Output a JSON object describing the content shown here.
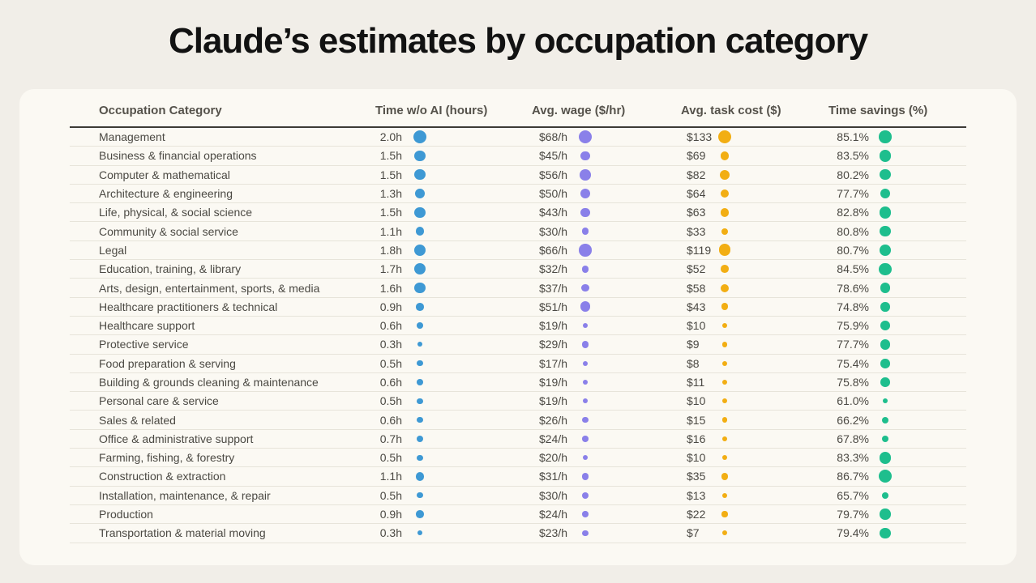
{
  "title": "Claude’s estimates by occupation category",
  "chart_data": {
    "type": "table",
    "title": "Claude’s estimates by occupation category",
    "columns": {
      "category": "Occupation Category",
      "time": "Time w/o AI (hours)",
      "wage": "Avg. wage ($/hr)",
      "cost": "Avg. task cost ($)",
      "savings": "Time savings (%)"
    },
    "dot_colors": {
      "time": "#3E99D4",
      "wage": "#8A80E9",
      "cost": "#F2AE13",
      "savings": "#1EBE8D"
    },
    "rows": [
      {
        "category": "Management",
        "time": "2.0h",
        "time_value": 2.0,
        "wage": "$68/h",
        "wage_value": 68,
        "cost": "$133",
        "cost_value": 133,
        "savings": "85.1%",
        "savings_value": 85.1
      },
      {
        "category": "Business & financial operations",
        "time": "1.5h",
        "time_value": 1.5,
        "wage": "$45/h",
        "wage_value": 45,
        "cost": "$69",
        "cost_value": 69,
        "savings": "83.5%",
        "savings_value": 83.5
      },
      {
        "category": "Computer & mathematical",
        "time": "1.5h",
        "time_value": 1.5,
        "wage": "$56/h",
        "wage_value": 56,
        "cost": "$82",
        "cost_value": 82,
        "savings": "80.2%",
        "savings_value": 80.2
      },
      {
        "category": "Architecture & engineering",
        "time": "1.3h",
        "time_value": 1.3,
        "wage": "$50/h",
        "wage_value": 50,
        "cost": "$64",
        "cost_value": 64,
        "savings": "77.7%",
        "savings_value": 77.7
      },
      {
        "category": "Life, physical, & social science",
        "time": "1.5h",
        "time_value": 1.5,
        "wage": "$43/h",
        "wage_value": 43,
        "cost": "$63",
        "cost_value": 63,
        "savings": "82.8%",
        "savings_value": 82.8
      },
      {
        "category": "Community & social service",
        "time": "1.1h",
        "time_value": 1.1,
        "wage": "$30/h",
        "wage_value": 30,
        "cost": "$33",
        "cost_value": 33,
        "savings": "80.8%",
        "savings_value": 80.8
      },
      {
        "category": "Legal",
        "time": "1.8h",
        "time_value": 1.8,
        "wage": "$66/h",
        "wage_value": 66,
        "cost": "$119",
        "cost_value": 119,
        "savings": "80.7%",
        "savings_value": 80.7
      },
      {
        "category": "Education, training, & library",
        "time": "1.7h",
        "time_value": 1.7,
        "wage": "$32/h",
        "wage_value": 32,
        "cost": "$52",
        "cost_value": 52,
        "savings": "84.5%",
        "savings_value": 84.5
      },
      {
        "category": "Arts, design, entertainment, sports, & media",
        "time": "1.6h",
        "time_value": 1.6,
        "wage": "$37/h",
        "wage_value": 37,
        "cost": "$58",
        "cost_value": 58,
        "savings": "78.6%",
        "savings_value": 78.6
      },
      {
        "category": "Healthcare practitioners & technical",
        "time": "0.9h",
        "time_value": 0.9,
        "wage": "$51/h",
        "wage_value": 51,
        "cost": "$43",
        "cost_value": 43,
        "savings": "74.8%",
        "savings_value": 74.8
      },
      {
        "category": "Healthcare support",
        "time": "0.6h",
        "time_value": 0.6,
        "wage": "$19/h",
        "wage_value": 19,
        "cost": "$10",
        "cost_value": 10,
        "savings": "75.9%",
        "savings_value": 75.9
      },
      {
        "category": "Protective service",
        "time": "0.3h",
        "time_value": 0.3,
        "wage": "$29/h",
        "wage_value": 29,
        "cost": "$9",
        "cost_value": 9,
        "savings": "77.7%",
        "savings_value": 77.7
      },
      {
        "category": "Food preparation & serving",
        "time": "0.5h",
        "time_value": 0.5,
        "wage": "$17/h",
        "wage_value": 17,
        "cost": "$8",
        "cost_value": 8,
        "savings": "75.4%",
        "savings_value": 75.4
      },
      {
        "category": "Building & grounds cleaning & maintenance",
        "time": "0.6h",
        "time_value": 0.6,
        "wage": "$19/h",
        "wage_value": 19,
        "cost": "$11",
        "cost_value": 11,
        "savings": "75.8%",
        "savings_value": 75.8
      },
      {
        "category": "Personal care & service",
        "time": "0.5h",
        "time_value": 0.5,
        "wage": "$19/h",
        "wage_value": 19,
        "cost": "$10",
        "cost_value": 10,
        "savings": "61.0%",
        "savings_value": 61.0
      },
      {
        "category": "Sales & related",
        "time": "0.6h",
        "time_value": 0.6,
        "wage": "$26/h",
        "wage_value": 26,
        "cost": "$15",
        "cost_value": 15,
        "savings": "66.2%",
        "savings_value": 66.2
      },
      {
        "category": "Office & administrative support",
        "time": "0.7h",
        "time_value": 0.7,
        "wage": "$24/h",
        "wage_value": 24,
        "cost": "$16",
        "cost_value": 16,
        "savings": "67.8%",
        "savings_value": 67.8
      },
      {
        "category": "Farming, fishing, & forestry",
        "time": "0.5h",
        "time_value": 0.5,
        "wage": "$20/h",
        "wage_value": 20,
        "cost": "$10",
        "cost_value": 10,
        "savings": "83.3%",
        "savings_value": 83.3
      },
      {
        "category": "Construction & extraction",
        "time": "1.1h",
        "time_value": 1.1,
        "wage": "$31/h",
        "wage_value": 31,
        "cost": "$35",
        "cost_value": 35,
        "savings": "86.7%",
        "savings_value": 86.7
      },
      {
        "category": "Installation, maintenance, & repair",
        "time": "0.5h",
        "time_value": 0.5,
        "wage": "$30/h",
        "wage_value": 30,
        "cost": "$13",
        "cost_value": 13,
        "savings": "65.7%",
        "savings_value": 65.7
      },
      {
        "category": "Production",
        "time": "0.9h",
        "time_value": 0.9,
        "wage": "$24/h",
        "wage_value": 24,
        "cost": "$22",
        "cost_value": 22,
        "savings": "79.7%",
        "savings_value": 79.7
      },
      {
        "category": "Transportation & material moving",
        "time": "0.3h",
        "time_value": 0.3,
        "wage": "$23/h",
        "wage_value": 23,
        "cost": "$7",
        "cost_value": 7,
        "savings": "79.4%",
        "savings_value": 79.4
      }
    ]
  }
}
